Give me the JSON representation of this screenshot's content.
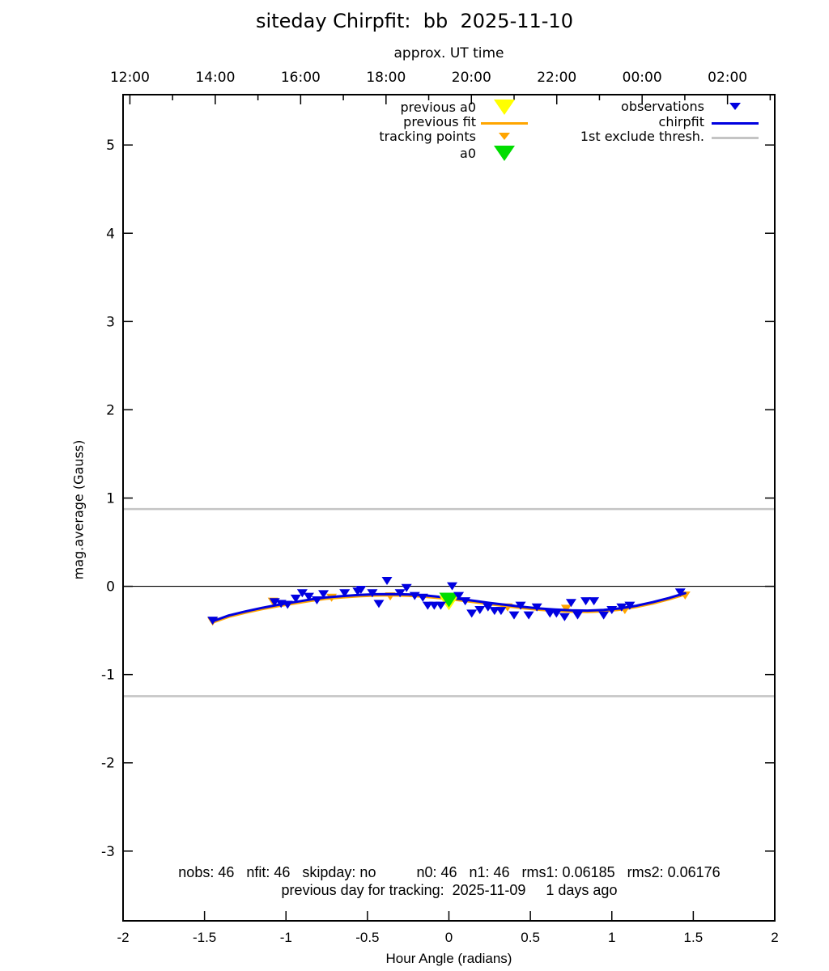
{
  "header": {
    "title": "siteday Chirpfit:  bb  2025-11-10"
  },
  "footer": {
    "stats_line1": "nobs: 46   nfit: 46   skipday: no          n0: 46   n1: 46   rms1: 0.06185   rms2: 0.06176",
    "stats_line2": "previous day for tracking:  2025-11-09     1 days ago"
  },
  "colors": {
    "observations": "#0000e0",
    "chirpfit": "#0000e0",
    "previous_fit": "#ffa500",
    "tracking_points": "#ffa500",
    "previous_a0": "#ffff00",
    "a0": "#00dd00",
    "exclude_threshold": "#c4c4c4",
    "axis": "#000000"
  },
  "legend": {
    "left": [
      {
        "label": "previous a0",
        "marker": "triangle",
        "size": "large",
        "color": "#ffff00"
      },
      {
        "label": "previous fit",
        "marker": "line",
        "size": "",
        "color": "#ffa500"
      },
      {
        "label": "tracking points",
        "marker": "triangle",
        "size": "small",
        "color": "#ffa500"
      },
      {
        "label": "a0",
        "marker": "triangle",
        "size": "large",
        "color": "#00dd00"
      }
    ],
    "right": [
      {
        "label": "observations",
        "marker": "triangle",
        "size": "small",
        "color": "#0000e0"
      },
      {
        "label": "chirpfit",
        "marker": "line",
        "size": "",
        "color": "#0000e0"
      },
      {
        "label": "1st exclude thresh.",
        "marker": "line",
        "size": "",
        "color": "#c4c4c4"
      }
    ]
  },
  "chart_data": {
    "type": "scatter",
    "title": "siteday Chirpfit:  bb  2025-11-10",
    "x2label": "approx. UT time",
    "xlabel": "Hour Angle (radians)",
    "ylabel": "mag.average (Gauss)",
    "xlim": [
      -2,
      2
    ],
    "ylim": [
      -3.79,
      5.57
    ],
    "xticks": [
      -2,
      -1.5,
      -1,
      -0.5,
      0,
      0.5,
      1,
      1.5,
      2
    ],
    "xtick_labels": [
      "-2",
      "-1.5",
      "-1",
      "-0.5",
      "0",
      "0.5",
      "1",
      "1.5",
      "2"
    ],
    "yticks": [
      -3,
      -2,
      -1,
      0,
      1,
      2,
      3,
      4,
      5
    ],
    "ytick_labels": [
      "-3",
      "-2",
      "-1",
      "0",
      "1",
      "2",
      "3",
      "4",
      "5"
    ],
    "x2ticks": [
      {
        "label": "12:00",
        "x": -1.958
      },
      {
        "label": "14:00",
        "x": -1.434
      },
      {
        "label": "16:00",
        "x": -0.91
      },
      {
        "label": "18:00",
        "x": -0.386
      },
      {
        "label": "20:00",
        "x": 0.138
      },
      {
        "label": "22:00",
        "x": 0.662
      },
      {
        "label": "00:00",
        "x": 1.186
      },
      {
        "label": "02:00",
        "x": 1.71
      }
    ],
    "x2minor": [
      -1.696,
      -1.172,
      -0.648,
      -0.124,
      0.4,
      0.924,
      1.448,
      1.972
    ],
    "zero_line": 0,
    "exclude_thresholds": [
      0.875,
      -1.245
    ],
    "grid": false,
    "legend_position": "top-inside",
    "series": [
      {
        "name": "previous fit",
        "type": "line",
        "color": "#ffa500",
        "width": 3,
        "points": [
          [
            -1.45,
            -0.41
          ],
          [
            -1.35,
            -0.345
          ],
          [
            -1.25,
            -0.3
          ],
          [
            -1.15,
            -0.26
          ],
          [
            -1.05,
            -0.225
          ],
          [
            -0.95,
            -0.195
          ],
          [
            -0.85,
            -0.165
          ],
          [
            -0.75,
            -0.14
          ],
          [
            -0.65,
            -0.125
          ],
          [
            -0.55,
            -0.113
          ],
          [
            -0.45,
            -0.105
          ],
          [
            -0.35,
            -0.103
          ],
          [
            -0.25,
            -0.107
          ],
          [
            -0.15,
            -0.118
          ],
          [
            -0.05,
            -0.135
          ],
          [
            0.05,
            -0.155
          ],
          [
            0.15,
            -0.178
          ],
          [
            0.25,
            -0.203
          ],
          [
            0.35,
            -0.225
          ],
          [
            0.45,
            -0.247
          ],
          [
            0.55,
            -0.265
          ],
          [
            0.65,
            -0.278
          ],
          [
            0.75,
            -0.287
          ],
          [
            0.85,
            -0.29
          ],
          [
            0.95,
            -0.283
          ],
          [
            1.05,
            -0.265
          ],
          [
            1.15,
            -0.235
          ],
          [
            1.25,
            -0.195
          ],
          [
            1.35,
            -0.148
          ],
          [
            1.45,
            -0.093
          ]
        ]
      },
      {
        "name": "tracking points",
        "type": "points",
        "marker": "triangle-down",
        "size": "small",
        "color": "#ffa500",
        "points": [
          [
            -1.45,
            -0.4
          ],
          [
            -1.08,
            -0.175
          ],
          [
            -0.72,
            -0.13
          ],
          [
            -0.36,
            -0.115
          ],
          [
            0.0,
            -0.15
          ],
          [
            0.36,
            -0.24
          ],
          [
            0.72,
            -0.255
          ],
          [
            1.08,
            -0.27
          ],
          [
            1.45,
            -0.105
          ]
        ]
      },
      {
        "name": "chirpfit",
        "type": "line",
        "color": "#0000e0",
        "width": 3,
        "points": [
          [
            -1.45,
            -0.395
          ],
          [
            -1.35,
            -0.33
          ],
          [
            -1.25,
            -0.285
          ],
          [
            -1.15,
            -0.245
          ],
          [
            -1.05,
            -0.21
          ],
          [
            -0.95,
            -0.18
          ],
          [
            -0.85,
            -0.15
          ],
          [
            -0.75,
            -0.125
          ],
          [
            -0.65,
            -0.11
          ],
          [
            -0.55,
            -0.098
          ],
          [
            -0.45,
            -0.09
          ],
          [
            -0.35,
            -0.088
          ],
          [
            -0.25,
            -0.092
          ],
          [
            -0.15,
            -0.103
          ],
          [
            -0.05,
            -0.12
          ],
          [
            0.05,
            -0.14
          ],
          [
            0.15,
            -0.163
          ],
          [
            0.25,
            -0.188
          ],
          [
            0.35,
            -0.21
          ],
          [
            0.45,
            -0.232
          ],
          [
            0.55,
            -0.25
          ],
          [
            0.65,
            -0.263
          ],
          [
            0.75,
            -0.272
          ],
          [
            0.85,
            -0.275
          ],
          [
            0.95,
            -0.268
          ],
          [
            1.05,
            -0.25
          ],
          [
            1.15,
            -0.22
          ],
          [
            1.25,
            -0.18
          ],
          [
            1.35,
            -0.133
          ],
          [
            1.45,
            -0.078
          ]
        ]
      },
      {
        "name": "previous a0",
        "type": "points",
        "marker": "triangle-down",
        "size": "large",
        "color": "#ffff00",
        "points": [
          [
            0.0,
            -0.19
          ]
        ]
      },
      {
        "name": "a0",
        "type": "points",
        "marker": "triangle-down",
        "size": "large",
        "color": "#00dd00",
        "points": [
          [
            0.0,
            -0.155
          ]
        ]
      },
      {
        "name": "observations",
        "type": "points",
        "marker": "triangle-down",
        "size": "small",
        "color": "#0000e0",
        "points": [
          [
            -1.45,
            -0.39
          ],
          [
            -1.07,
            -0.18
          ],
          [
            -1.03,
            -0.2
          ],
          [
            -0.99,
            -0.21
          ],
          [
            -0.94,
            -0.14
          ],
          [
            -0.9,
            -0.08
          ],
          [
            -0.86,
            -0.12
          ],
          [
            -0.81,
            -0.16
          ],
          [
            -0.77,
            -0.09
          ],
          [
            -0.64,
            -0.08
          ],
          [
            -0.56,
            -0.06
          ],
          [
            -0.54,
            -0.04
          ],
          [
            -0.47,
            -0.08
          ],
          [
            -0.43,
            -0.2
          ],
          [
            -0.38,
            0.06
          ],
          [
            -0.3,
            -0.08
          ],
          [
            -0.26,
            -0.02
          ],
          [
            -0.21,
            -0.11
          ],
          [
            -0.16,
            -0.13
          ],
          [
            -0.13,
            -0.22
          ],
          [
            -0.09,
            -0.22
          ],
          [
            -0.05,
            -0.22
          ],
          [
            0.02,
            0.0
          ],
          [
            0.06,
            -0.11
          ],
          [
            0.1,
            -0.17
          ],
          [
            0.14,
            -0.31
          ],
          [
            0.19,
            -0.27
          ],
          [
            0.24,
            -0.24
          ],
          [
            0.28,
            -0.28
          ],
          [
            0.32,
            -0.28
          ],
          [
            0.4,
            -0.33
          ],
          [
            0.44,
            -0.22
          ],
          [
            0.49,
            -0.33
          ],
          [
            0.54,
            -0.24
          ],
          [
            0.62,
            -0.31
          ],
          [
            0.66,
            -0.31
          ],
          [
            0.71,
            -0.35
          ],
          [
            0.75,
            -0.19
          ],
          [
            0.79,
            -0.33
          ],
          [
            0.84,
            -0.17
          ],
          [
            0.89,
            -0.17
          ],
          [
            0.95,
            -0.33
          ],
          [
            1.0,
            -0.27
          ],
          [
            1.06,
            -0.24
          ],
          [
            1.11,
            -0.22
          ],
          [
            1.42,
            -0.07
          ]
        ]
      }
    ]
  }
}
